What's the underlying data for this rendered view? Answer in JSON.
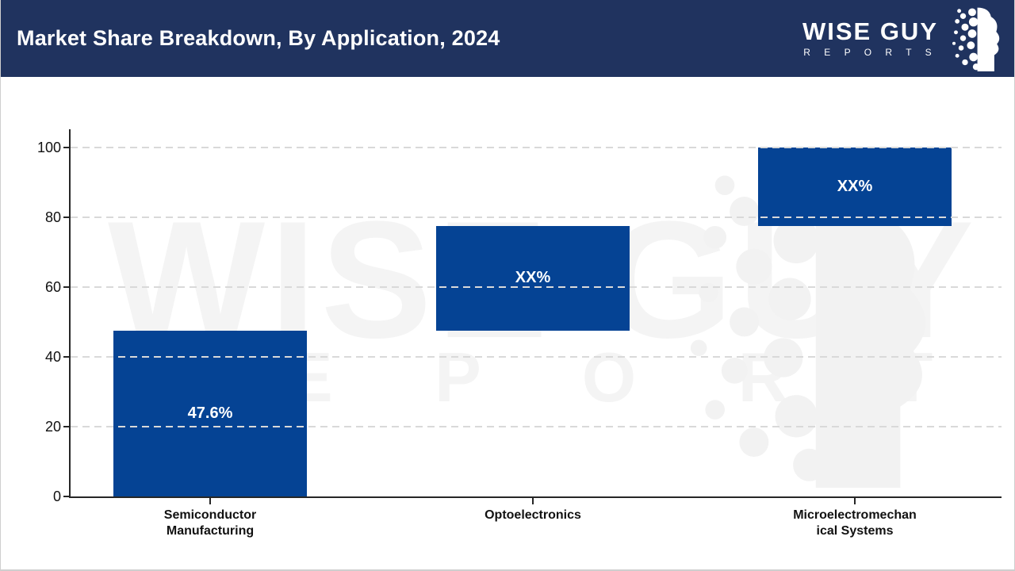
{
  "header": {
    "title": "Market Share Breakdown, By Application, 2024",
    "background_color": "#20335f",
    "logo": {
      "line1": "WISE GUY",
      "line2": "R E P O R T S",
      "icon": "dotted-face-profile"
    }
  },
  "watermark": {
    "line1": "WISE GUY",
    "line2": "R E P O R T S",
    "color": "#f4f4f4"
  },
  "chart_data": {
    "type": "bar",
    "subtype": "waterfall-breakdown",
    "title": "Market Share Breakdown, By Application, 2024",
    "categories": [
      "Semiconductor Manufacturing",
      "Optoelectronics",
      "Microelectromechanical Systems"
    ],
    "category_label_lines": [
      [
        "Semiconductor",
        "Manufacturing"
      ],
      [
        "Optoelectronics"
      ],
      [
        "Microelectromechan",
        "ical Systems"
      ]
    ],
    "segments": [
      {
        "category": "Semiconductor Manufacturing",
        "start": 0,
        "end": 47.6,
        "value": 47.6,
        "label": "47.6%"
      },
      {
        "category": "Optoelectronics",
        "start": 47.6,
        "end": 77.5,
        "value": 29.9,
        "label": "XX%"
      },
      {
        "category": "Microelectromechanical Systems",
        "start": 77.5,
        "end": 100,
        "value": 22.5,
        "label": "XX%"
      }
    ],
    "xlabel": "",
    "ylabel": "",
    "ylim": [
      0,
      100
    ],
    "yticks": [
      0,
      20,
      40,
      60,
      80,
      100
    ],
    "grid": "horizontal dashed, drawn above bars",
    "legend": "none",
    "bar_color": "#054394",
    "bar_label_color": "#ffffff",
    "gridline_color": "#d9d9d9",
    "axis_color": "#262626",
    "tick_label_color": "#111111"
  }
}
